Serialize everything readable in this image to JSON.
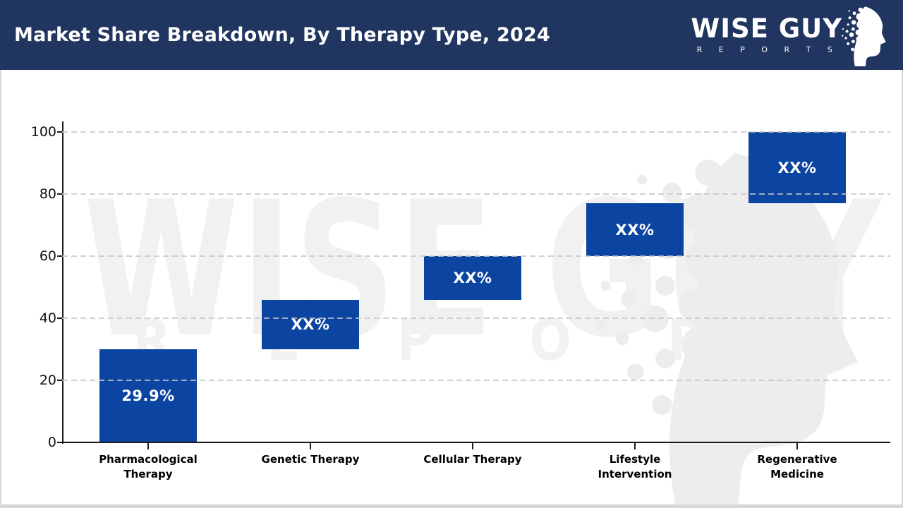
{
  "header": {
    "title": "Market Share Breakdown, By Therapy Type, 2024",
    "brand_name": "WISE GUY",
    "brand_sub": "R E P O R T S",
    "bg_color": "#20355f"
  },
  "watermark": {
    "line1": "WISE GUY",
    "line2": "R E P O R T S"
  },
  "chart_data": {
    "type": "bar",
    "subtype": "waterfall",
    "title": "Market Share Breakdown, By Therapy Type, 2024",
    "categories": [
      "Pharmacological Therapy",
      "Genetic Therapy",
      "Cellular Therapy",
      "Lifestyle Intervention",
      "Regenerative Medicine"
    ],
    "segments": [
      {
        "category": "Pharmacological Therapy",
        "start": 0,
        "end": 29.9,
        "label": "29.9%"
      },
      {
        "category": "Genetic Therapy",
        "start": 29.9,
        "end": 46,
        "label": "XX%"
      },
      {
        "category": "Cellular Therapy",
        "start": 46,
        "end": 60,
        "label": "XX%"
      },
      {
        "category": "Lifestyle Intervention",
        "start": 60,
        "end": 77,
        "label": "XX%"
      },
      {
        "category": "Regenerative Medicine",
        "start": 77,
        "end": 100,
        "label": "XX%"
      }
    ],
    "yticks": [
      0,
      20,
      40,
      60,
      80,
      100
    ],
    "ylim": [
      0,
      103
    ],
    "grid": "horizontal-dashed",
    "legend": "none",
    "bar_color": "#0b45a1",
    "bar_label_color": "#ffffff",
    "axis_color": "#1a1a1a"
  }
}
